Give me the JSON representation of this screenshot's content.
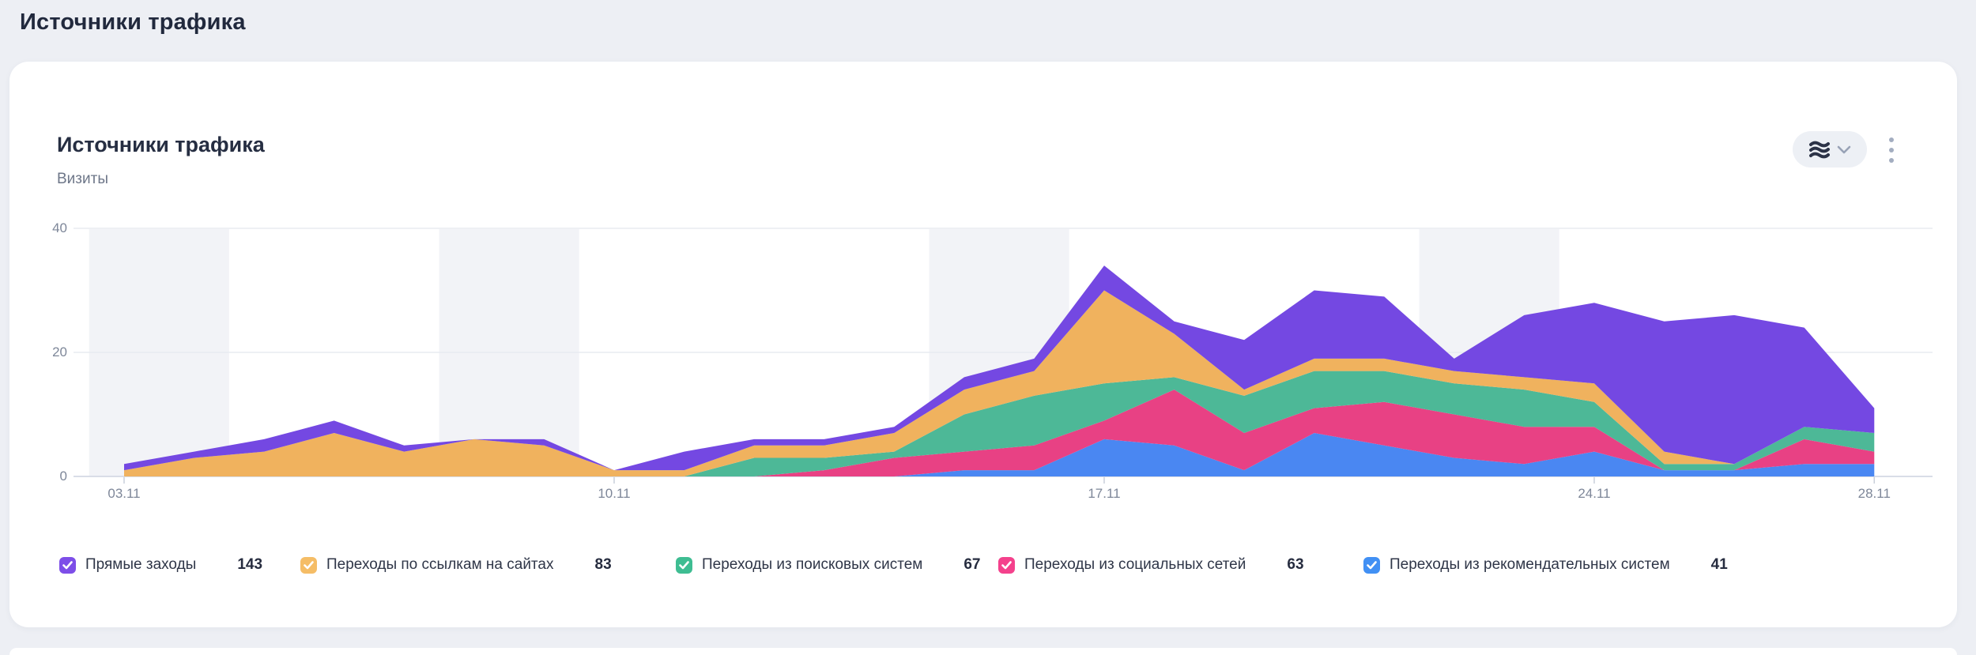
{
  "page": {
    "title": "Источники трафика"
  },
  "card": {
    "title": "Источники трафика",
    "subtitle": "Визиты"
  },
  "toolbar": {
    "chart_type_icon": "stacked-area-icon",
    "chevron_icon": "chevron-down-icon",
    "menu_icon": "kebab-menu-icon"
  },
  "axes": {
    "y_ticks": [
      {
        "label": "40",
        "value": 40
      },
      {
        "label": "20",
        "value": 20
      },
      {
        "label": "0",
        "value": 0
      }
    ],
    "x_ticks": [
      {
        "label": "03.11",
        "day": 0
      },
      {
        "label": "10.11",
        "day": 7
      },
      {
        "label": "17.11",
        "day": 14
      },
      {
        "label": "24.11",
        "day": 21
      },
      {
        "label": "28.11",
        "day": 25
      }
    ]
  },
  "chart_data": {
    "type": "area",
    "stacked": true,
    "title": "Источники трафика",
    "ylabel": "Визиты",
    "ylim": [
      0,
      40
    ],
    "grid": "horizontal",
    "legend_position": "bottom",
    "dates": [
      "03.11",
      "04.11",
      "05.11",
      "06.11",
      "07.11",
      "08.11",
      "09.11",
      "10.11",
      "11.11",
      "12.11",
      "13.11",
      "14.11",
      "15.11",
      "16.11",
      "17.11",
      "18.11",
      "19.11",
      "20.11",
      "21.11",
      "22.11",
      "23.11",
      "24.11",
      "25.11",
      "26.11",
      "27.11",
      "28.11"
    ],
    "holiday_bands": [
      {
        "from": 0,
        "to": 1
      },
      {
        "from": 5,
        "to": 6
      },
      {
        "from": 12,
        "to": 13
      },
      {
        "from": 19,
        "to": 20
      }
    ],
    "series": [
      {
        "key": "rec",
        "name": "Переходы из рекомендательных систем",
        "color": "#4a87f2",
        "chip_color": "#4190f4",
        "total": 41,
        "values": [
          0,
          0,
          0,
          0,
          0,
          0,
          0,
          0,
          0,
          0,
          0,
          0,
          1,
          1,
          6,
          5,
          1,
          7,
          5,
          3,
          2,
          4,
          1,
          1,
          2,
          2
        ]
      },
      {
        "key": "social",
        "name": "Переходы из социальных сетей",
        "color": "#e84184",
        "chip_color": "#f4418c",
        "total": 63,
        "values": [
          0,
          0,
          0,
          0,
          0,
          0,
          0,
          0,
          0,
          0,
          1,
          3,
          3,
          4,
          3,
          9,
          6,
          4,
          7,
          7,
          6,
          4,
          0,
          0,
          4,
          2
        ]
      },
      {
        "key": "search",
        "name": "Переходы из поисковых систем",
        "color": "#4db897",
        "chip_color": "#3ebd92",
        "total": 67,
        "values": [
          0,
          0,
          0,
          0,
          0,
          0,
          0,
          0,
          0,
          3,
          2,
          1,
          6,
          8,
          6,
          2,
          6,
          6,
          5,
          5,
          6,
          4,
          1,
          1,
          2,
          3
        ]
      },
      {
        "key": "links",
        "name": "Переходы по ссылкам на сайтах",
        "color": "#f0b25e",
        "chip_color": "#f5bd66",
        "total": 83,
        "values": [
          1,
          3,
          4,
          7,
          4,
          6,
          5,
          1,
          1,
          2,
          2,
          3,
          4,
          4,
          15,
          7,
          1,
          2,
          2,
          2,
          2,
          3,
          2,
          0,
          0,
          0
        ]
      },
      {
        "key": "direct",
        "name": "Прямые заходы",
        "color": "#7448e2",
        "chip_color": "#7d4ee8",
        "total": 143,
        "values": [
          1,
          1,
          2,
          2,
          1,
          0,
          1,
          0,
          3,
          1,
          1,
          1,
          2,
          2,
          4,
          2,
          8,
          11,
          10,
          2,
          10,
          13,
          21,
          24,
          16,
          4
        ]
      }
    ],
    "legend": [
      {
        "series": "direct",
        "label": "Прямые заходы",
        "value": "143"
      },
      {
        "series": "links",
        "label": "Переходы по ссылкам на сайтах",
        "value": "83"
      },
      {
        "series": "search",
        "label": "Переходы из поисковых систем",
        "value": "67"
      },
      {
        "series": "social",
        "label": "Переходы из социальных сетей",
        "value": "63"
      },
      {
        "series": "rec",
        "label": "Переходы из рекомендательных систем",
        "value": "41"
      }
    ],
    "colors": {
      "band": "#f2f3f7",
      "gridline": "#e8ebf1",
      "baseline": "#d9dde7",
      "tick": "#c9cfda",
      "tick_text": "#7e8799"
    }
  }
}
